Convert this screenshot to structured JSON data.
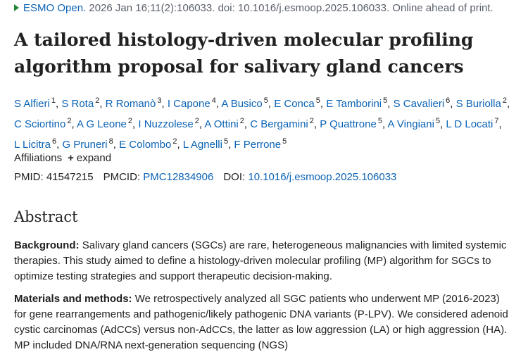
{
  "citation": {
    "journal": "ESMO Open.",
    "details": "2026 Jan 16;11(2):106033. doi: 10.1016/j.esmoop.2025.106033. Online ahead of print."
  },
  "title": "A tailored histology-driven molecular profiling algorithm proposal for salivary gland cancers",
  "author_separator": ",",
  "authors": [
    {
      "name": "S Alfieri",
      "affiliation": "1"
    },
    {
      "name": "S Rota",
      "affiliation": "2"
    },
    {
      "name": "R Romanò",
      "affiliation": "3"
    },
    {
      "name": "I Capone",
      "affiliation": "4"
    },
    {
      "name": "A Busico",
      "affiliation": "5"
    },
    {
      "name": "E Conca",
      "affiliation": "5"
    },
    {
      "name": "E Tamborini",
      "affiliation": "5"
    },
    {
      "name": "S Cavalieri",
      "affiliation": "6"
    },
    {
      "name": "S Buriolla",
      "affiliation": "2"
    },
    {
      "name": "C Sciortino",
      "affiliation": "2"
    },
    {
      "name": "A G Leone",
      "affiliation": "2"
    },
    {
      "name": "I Nuzzolese",
      "affiliation": "2"
    },
    {
      "name": "A Ottini",
      "affiliation": "2"
    },
    {
      "name": "C Bergamini",
      "affiliation": "2"
    },
    {
      "name": "P Quattrone",
      "affiliation": "5"
    },
    {
      "name": "A Vingiani",
      "affiliation": "5"
    },
    {
      "name": "L D Locati",
      "affiliation": "7"
    },
    {
      "name": "L Licitra",
      "affiliation": "6"
    },
    {
      "name": "G Pruneri",
      "affiliation": "8"
    },
    {
      "name": "E Colombo",
      "affiliation": "2"
    },
    {
      "name": "L Agnelli",
      "affiliation": "5"
    },
    {
      "name": "F Perrone",
      "affiliation": "5"
    }
  ],
  "affiliations": {
    "label": "Affiliations",
    "toggle": "expand"
  },
  "identifiers": [
    {
      "label": "PMID:",
      "value": "41547215"
    },
    {
      "label": "PMCID:",
      "value": "PMC12834906"
    },
    {
      "label": "DOI:",
      "value": "10.1016/j.esmoop.2025.106033"
    }
  ],
  "abstract": {
    "heading": "Abstract",
    "paragraphs": [
      {
        "label": "Background:",
        "text": "Salivary gland cancers (SGCs) are rare, heterogeneous malignancies with limited systemic therapies. This study aimed to define a histology-driven molecular profiling (MP) algorithm for SGCs to optimize testing strategies and support therapeutic decision-making."
      },
      {
        "label": "Materials and methods:",
        "text": "We retrospectively analyzed all SGC patients who underwent MP (2016-2023) for gene rearrangements and pathogenic/likely pathogenic DNA variants (P-LPV). We considered adenoid cystic carcinomas (AdCCs) versus non-AdCCs, the latter as low aggression (LA) or high aggression (HA). MP included DNA/RNA next-generation sequencing (NGS)"
      }
    ]
  }
}
